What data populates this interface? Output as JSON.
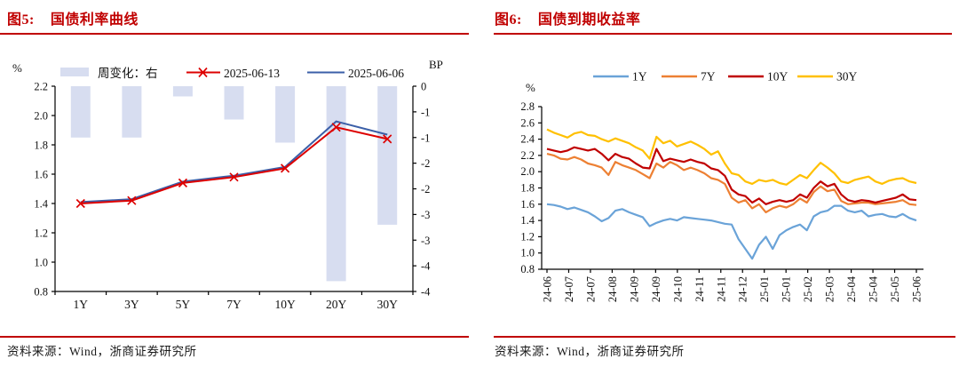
{
  "panels": [
    {
      "figure_label": "图5:",
      "title": "国债利率曲线",
      "source": "资料来源：Wind，浙商证券研究所",
      "accent_color": "#c00000"
    },
    {
      "figure_label": "图6:",
      "title": "国债到期收益率",
      "source": "资料来源：Wind，浙商证券研究所",
      "accent_color": "#c00000"
    }
  ],
  "chart_data": [
    {
      "type": "bar",
      "subtype": "bar-line-combo",
      "title": "国债利率曲线",
      "categories": [
        "1Y",
        "3Y",
        "5Y",
        "7Y",
        "10Y",
        "20Y",
        "30Y"
      ],
      "left_axis": {
        "label": "%",
        "min": 0.8,
        "max": 2.2,
        "ticks": [
          "2.2",
          "2.0",
          "1.8",
          "1.6",
          "1.4",
          "1.2",
          "1.0",
          "0.8"
        ]
      },
      "right_axis": {
        "label": "BP",
        "min": -4,
        "max": 0,
        "tick_labels": [
          "0",
          "-1",
          "-1",
          "-2",
          "-2",
          "-3",
          "-3",
          "-4",
          "-4"
        ]
      },
      "bar_series": {
        "name": "周变化：右",
        "axis": "right",
        "color": "#d7ddf0",
        "values": [
          -1.0,
          -1.0,
          -0.2,
          -0.65,
          -1.1,
          -3.8,
          -2.7
        ]
      },
      "line_series": [
        {
          "name": "2025-06-13",
          "color": "#dd0000",
          "marker": "x",
          "axis": "left",
          "values": [
            1.4,
            1.42,
            1.54,
            1.58,
            1.64,
            1.92,
            1.84
          ]
        },
        {
          "name": "2025-06-06",
          "color": "#3b5fa8",
          "marker": "none",
          "axis": "left",
          "values": [
            1.41,
            1.43,
            1.55,
            1.59,
            1.65,
            1.96,
            1.87
          ]
        }
      ],
      "legend_position": "top",
      "grid": false
    },
    {
      "type": "line",
      "title": "国债到期收益率",
      "y_axis": {
        "label": "%",
        "min": 0.8,
        "max": 2.8,
        "ticks": [
          "2.8",
          "2.6",
          "2.4",
          "2.2",
          "2.0",
          "1.8",
          "1.6",
          "1.4",
          "1.2",
          "1.0",
          "0.8"
        ]
      },
      "x_tick_labels": [
        "24-06",
        "24-07",
        "24-07",
        "24-08",
        "24-09",
        "24-09",
        "24-10",
        "24-11",
        "24-11",
        "24-12",
        "25-01",
        "25-01",
        "25-02",
        "25-03",
        "25-04",
        "25-04",
        "25-05",
        "25-06"
      ],
      "x_range": [
        "2024-06",
        "2025-06"
      ],
      "series": [
        {
          "name": "1Y",
          "color": "#6aa3d8",
          "values": [
            1.6,
            1.59,
            1.57,
            1.54,
            1.56,
            1.53,
            1.5,
            1.45,
            1.39,
            1.43,
            1.52,
            1.54,
            1.5,
            1.47,
            1.44,
            1.33,
            1.37,
            1.4,
            1.42,
            1.4,
            1.44,
            1.43,
            1.42,
            1.41,
            1.4,
            1.38,
            1.36,
            1.35,
            1.17,
            1.05,
            0.93,
            1.1,
            1.2,
            1.05,
            1.22,
            1.28,
            1.32,
            1.35,
            1.28,
            1.45,
            1.5,
            1.52,
            1.58,
            1.58,
            1.52,
            1.5,
            1.52,
            1.45,
            1.47,
            1.48,
            1.45,
            1.44,
            1.48,
            1.43,
            1.4
          ]
        },
        {
          "name": "7Y",
          "color": "#ed8033",
          "values": [
            2.22,
            2.2,
            2.16,
            2.15,
            2.18,
            2.15,
            2.1,
            2.08,
            2.05,
            1.96,
            2.12,
            2.08,
            2.05,
            2.02,
            1.97,
            1.92,
            2.1,
            2.05,
            2.12,
            2.08,
            2.02,
            2.05,
            2.02,
            1.98,
            1.92,
            1.9,
            1.85,
            1.68,
            1.62,
            1.65,
            1.55,
            1.6,
            1.5,
            1.55,
            1.58,
            1.56,
            1.6,
            1.67,
            1.62,
            1.75,
            1.82,
            1.76,
            1.78,
            1.64,
            1.6,
            1.61,
            1.62,
            1.62,
            1.6,
            1.61,
            1.62,
            1.63,
            1.65,
            1.6,
            1.59
          ]
        },
        {
          "name": "10Y",
          "color": "#c00000",
          "values": [
            2.28,
            2.26,
            2.24,
            2.26,
            2.3,
            2.28,
            2.26,
            2.28,
            2.22,
            2.14,
            2.22,
            2.18,
            2.16,
            2.1,
            2.05,
            2.04,
            2.28,
            2.13,
            2.16,
            2.14,
            2.12,
            2.15,
            2.12,
            2.1,
            2.04,
            2.02,
            1.95,
            1.78,
            1.72,
            1.7,
            1.62,
            1.67,
            1.6,
            1.63,
            1.65,
            1.63,
            1.65,
            1.72,
            1.68,
            1.8,
            1.88,
            1.82,
            1.85,
            1.72,
            1.65,
            1.63,
            1.65,
            1.64,
            1.62,
            1.64,
            1.66,
            1.68,
            1.72,
            1.66,
            1.65
          ]
        },
        {
          "name": "30Y",
          "color": "#ffc000",
          "values": [
            2.52,
            2.48,
            2.45,
            2.42,
            2.47,
            2.49,
            2.45,
            2.44,
            2.4,
            2.37,
            2.41,
            2.38,
            2.35,
            2.3,
            2.26,
            2.16,
            2.43,
            2.35,
            2.38,
            2.31,
            2.34,
            2.37,
            2.33,
            2.28,
            2.21,
            2.25,
            2.1,
            1.98,
            1.96,
            1.88,
            1.85,
            1.9,
            1.88,
            1.9,
            1.86,
            1.84,
            1.9,
            1.96,
            1.92,
            2.02,
            2.11,
            2.05,
            1.98,
            1.88,
            1.86,
            1.9,
            1.92,
            1.94,
            1.88,
            1.85,
            1.89,
            1.91,
            1.92,
            1.88,
            1.86
          ]
        }
      ],
      "legend_position": "top",
      "grid": false
    }
  ]
}
